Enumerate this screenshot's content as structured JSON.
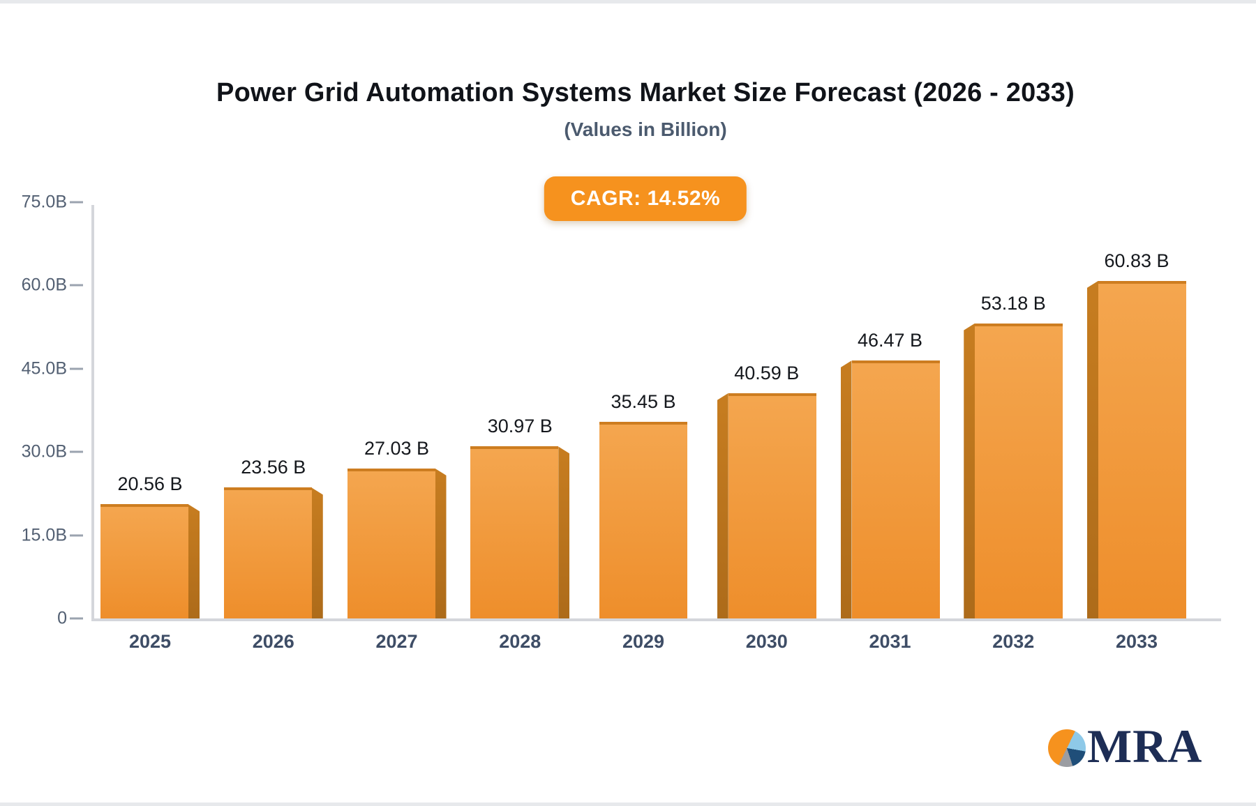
{
  "header": {
    "title": "Power Grid Automation Systems Market Size Forecast (2026 - 2033)",
    "subtitle": "(Values in Billion)",
    "cagr_badge": "CAGR: 14.52%"
  },
  "chart_data": {
    "type": "bar",
    "title": "Power Grid Automation Systems Market Size Forecast (2026 - 2033)",
    "subtitle": "(Values in Billion)",
    "cagr_percent": 14.52,
    "categories": [
      "2025",
      "2026",
      "2027",
      "2028",
      "2029",
      "2030",
      "2031",
      "2032",
      "2033"
    ],
    "values": [
      20.56,
      23.56,
      27.03,
      30.97,
      35.45,
      40.59,
      46.47,
      53.18,
      60.83
    ],
    "bar_labels": [
      "20.56 B",
      "23.56 B",
      "27.03 B",
      "30.97 B",
      "35.45 B",
      "40.59 B",
      "46.47 B",
      "53.18 B",
      "60.83 B"
    ],
    "unit": "B",
    "xlabel": "",
    "ylabel": "",
    "ylim": [
      0,
      75
    ],
    "ytick_values": [
      0,
      15,
      30,
      45,
      60,
      75
    ],
    "ytick_labels": [
      "0",
      "15.0B",
      "30.0B",
      "45.0B",
      "60.0B",
      "75.0B"
    ],
    "grid": false,
    "legend": "none"
  },
  "colors": {
    "bar_face_top": "#f4a64f",
    "bar_face_bottom": "#ee8e2b",
    "bar_side_dark": "#b06c1b",
    "bar_top_edge": "#cd7d20",
    "badge_bg": "#f6921e",
    "axis_gray": "#d4d6db",
    "tick_label": "#525f72",
    "year_label": "#3e4d66",
    "logo_navy": "#1d2d55",
    "logo_lightblue": "#8ec9e8",
    "logo_gray": "#9b9da2"
  },
  "branding": {
    "logo_text": "MRA"
  }
}
